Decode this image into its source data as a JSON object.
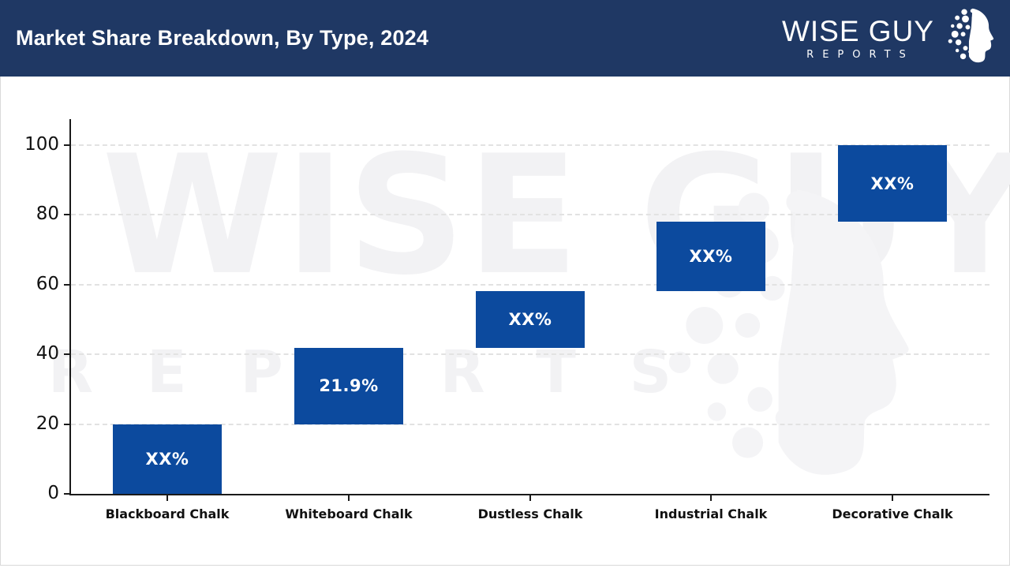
{
  "header": {
    "title": "Market Share Breakdown, By Type, 2024",
    "bg_color": "#1F3864",
    "logo": {
      "line1": "WISE GUY",
      "line2": "REPORTS"
    }
  },
  "watermark": {
    "text1": "WISE GUY",
    "text2": "REPORTS"
  },
  "chart_data": {
    "type": "bar",
    "subtype": "waterfall",
    "title": "Market Share Breakdown, By Type, 2024",
    "categories": [
      "Blackboard Chalk",
      "Whiteboard Chalk",
      "Dustless Chalk",
      "Industrial Chalk",
      "Decorative Chalk"
    ],
    "series": [
      {
        "name": "Market share (%)",
        "starts": [
          0,
          20,
          41.9,
          58.1,
          78
        ],
        "ends": [
          20,
          41.9,
          58.1,
          78,
          100
        ],
        "labels": [
          "XX%",
          "21.9%",
          "XX%",
          "XX%",
          "XX%"
        ]
      }
    ],
    "xlabel": "",
    "ylabel": "",
    "ylim": [
      0,
      100
    ],
    "yticks": [
      0,
      20,
      40,
      60,
      80,
      100
    ],
    "grid": "horizontal dashed",
    "legend_position": "none",
    "bar_color": "#0C4A9E",
    "bar_label_color": "#FFFFFF",
    "axis_color": "#1a1a1a",
    "gridline_color": "#e2e2e2"
  }
}
